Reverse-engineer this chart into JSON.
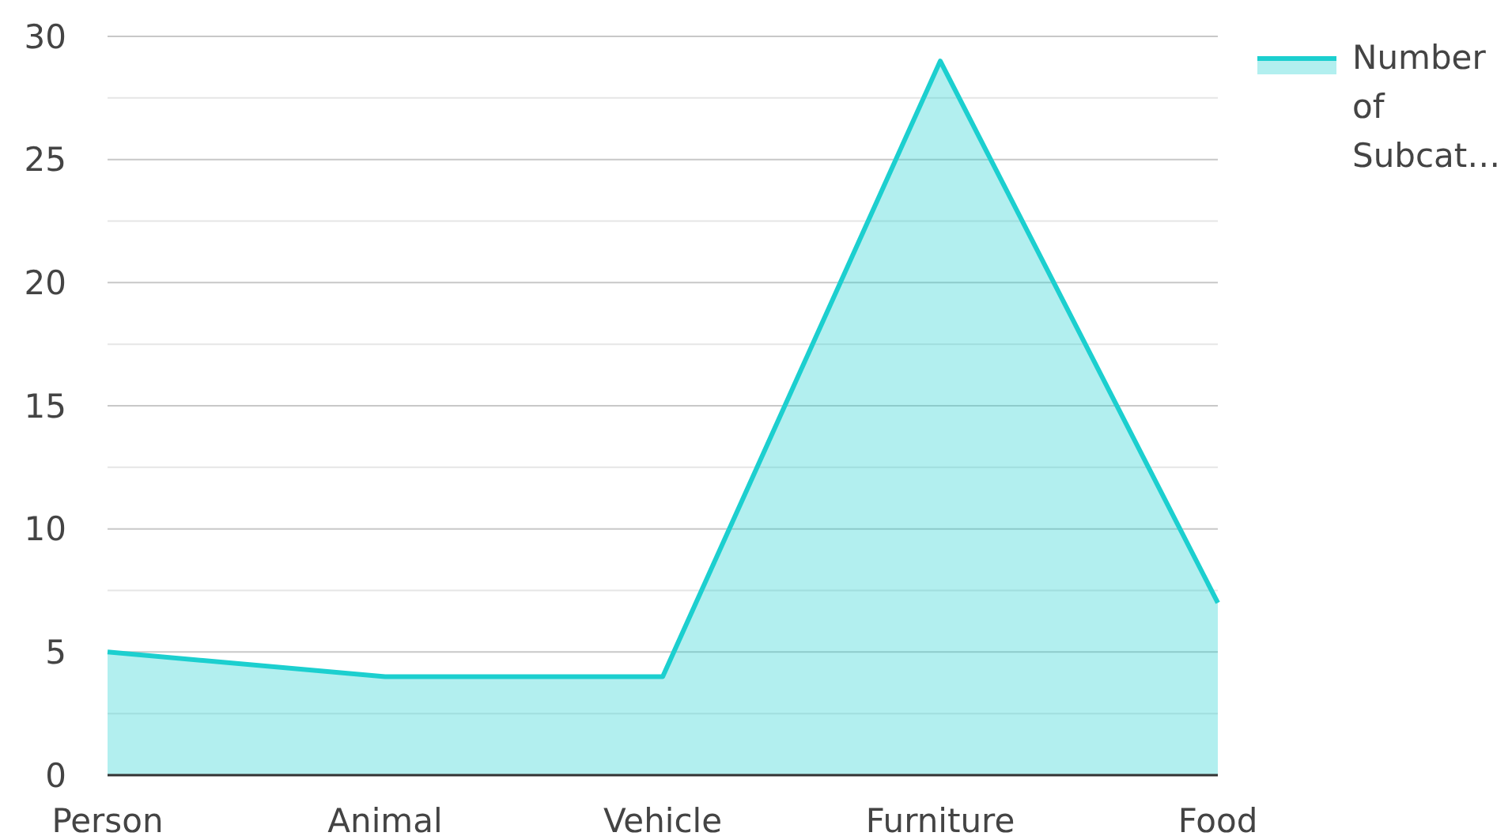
{
  "chart_data": {
    "type": "area",
    "categories": [
      "Person",
      "Animal",
      "Vehicle",
      "Furniture",
      "Food"
    ],
    "series": [
      {
        "name": "Number of Subcat…",
        "color": "#1ccfcf",
        "values": [
          5,
          4,
          4,
          29,
          7
        ]
      }
    ],
    "ylim": [
      0,
      30
    ],
    "yticks": [
      0,
      {
        "value": 2.5,
        "label": null
      },
      5,
      {
        "value": 7.5,
        "label": null
      },
      10,
      {
        "value": 12.5,
        "label": null
      },
      15,
      {
        "value": 17.5,
        "label": null
      },
      20,
      {
        "value": 22.5,
        "label": null
      },
      25,
      {
        "value": 27.5,
        "label": null
      },
      30
    ],
    "grid": "y",
    "legend": "top right"
  }
}
